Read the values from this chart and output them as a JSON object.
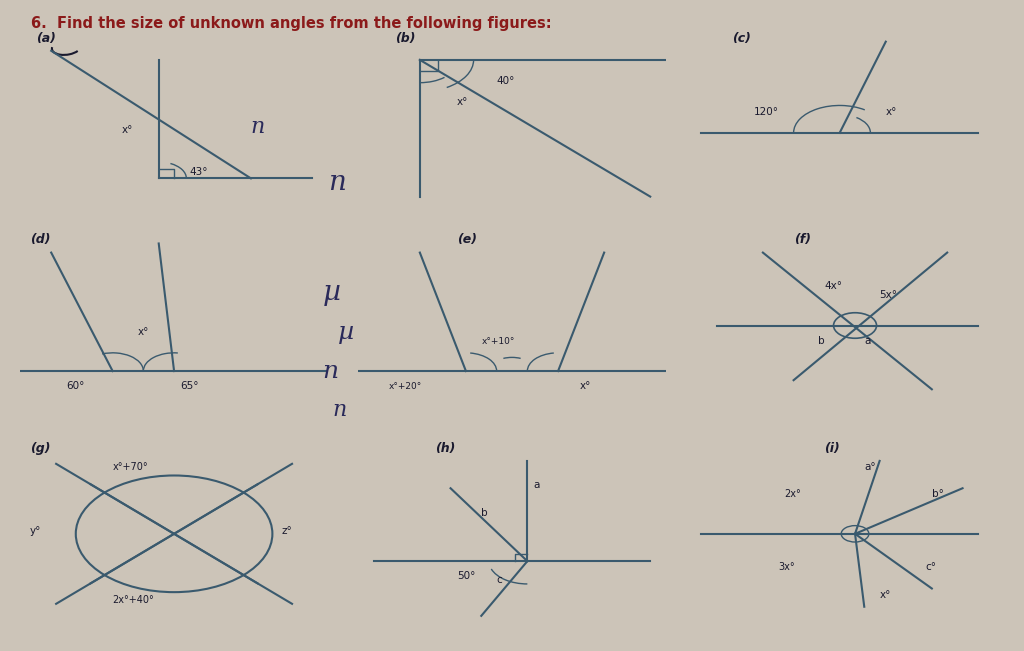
{
  "title": "6.  Find the size of unknown angles from the following figures:",
  "title_color": "#8B1a1a",
  "bg_color": "#ccc4b8",
  "line_color": "#3a5a6e",
  "text_color": "#1a1a2e",
  "hw_color": "#2a2a5a",
  "label_color": "#1a1a2e",
  "figures": {
    "a": {
      "label": "(a)",
      "angle1": "43°",
      "angle2": "x°"
    },
    "b": {
      "label": "(b)",
      "angle1": "40°",
      "angle2": "x°"
    },
    "c": {
      "label": "(c)",
      "angle1": "120°",
      "angle2": "x°"
    },
    "d": {
      "label": "(d)",
      "angle1": "60°",
      "angle2": "x°",
      "angle3": "65°"
    },
    "e": {
      "label": "(e)",
      "angle1": "x°+20°",
      "angle2": "x°+10°",
      "angle3": "x°"
    },
    "f": {
      "label": "(f)",
      "angle1": "4x°",
      "angle2": "5x°",
      "angle3": "b",
      "angle4": "a"
    },
    "g": {
      "label": "(g)",
      "angle1": "x°+70°",
      "angle2": "y°",
      "angle3": "z°",
      "angle4": "2x°+40°"
    },
    "h": {
      "label": "(h)",
      "angle1": "a",
      "angle2": "b",
      "angle3": "c",
      "angle4": "50°"
    },
    "i": {
      "label": "(i)",
      "angle1": "a°",
      "angle2": "b°",
      "angle3": "c°",
      "angle4": "2x°",
      "angle5": "3x°",
      "angle6": "x°"
    }
  }
}
